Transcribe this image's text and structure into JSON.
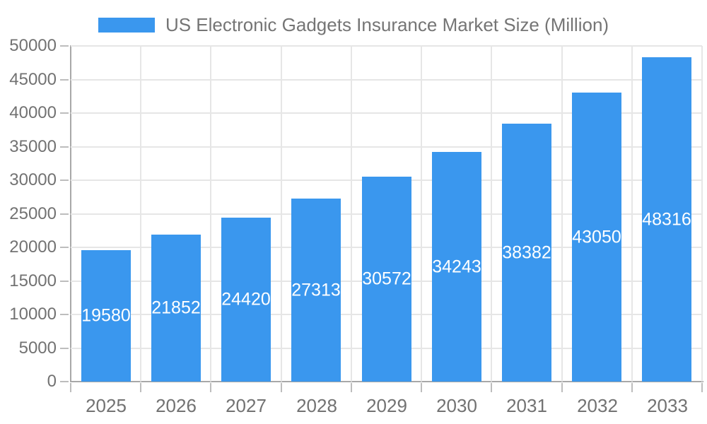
{
  "legend": {
    "label": "US Electronic Gadgets Insurance Market Size (Million)",
    "position": "top"
  },
  "chart_data": {
    "type": "bar",
    "title": "US Electronic Gadgets Insurance Market Size (Million)",
    "categories": [
      "2025",
      "2026",
      "2027",
      "2028",
      "2029",
      "2030",
      "2031",
      "2032",
      "2033"
    ],
    "values": [
      19580,
      21852,
      24420,
      27313,
      30572,
      34243,
      38382,
      43050,
      48316
    ],
    "bar_value_labels_visible": true,
    "xlabel": "",
    "ylabel": "",
    "ylim": [
      0,
      50000
    ],
    "yticks": [
      0,
      5000,
      10000,
      15000,
      20000,
      25000,
      30000,
      35000,
      40000,
      45000,
      50000
    ],
    "grid": true,
    "legend_position": "top",
    "colors": {
      "bar": "#3a97ee",
      "bar_label": "#ffffff",
      "axis_line": "#a8a8a8",
      "tick": "#bdbdbd",
      "gridline": "#e6e6e6",
      "axis_label": "#727272",
      "legend_text": "#757575",
      "background": "#ffffff"
    }
  }
}
